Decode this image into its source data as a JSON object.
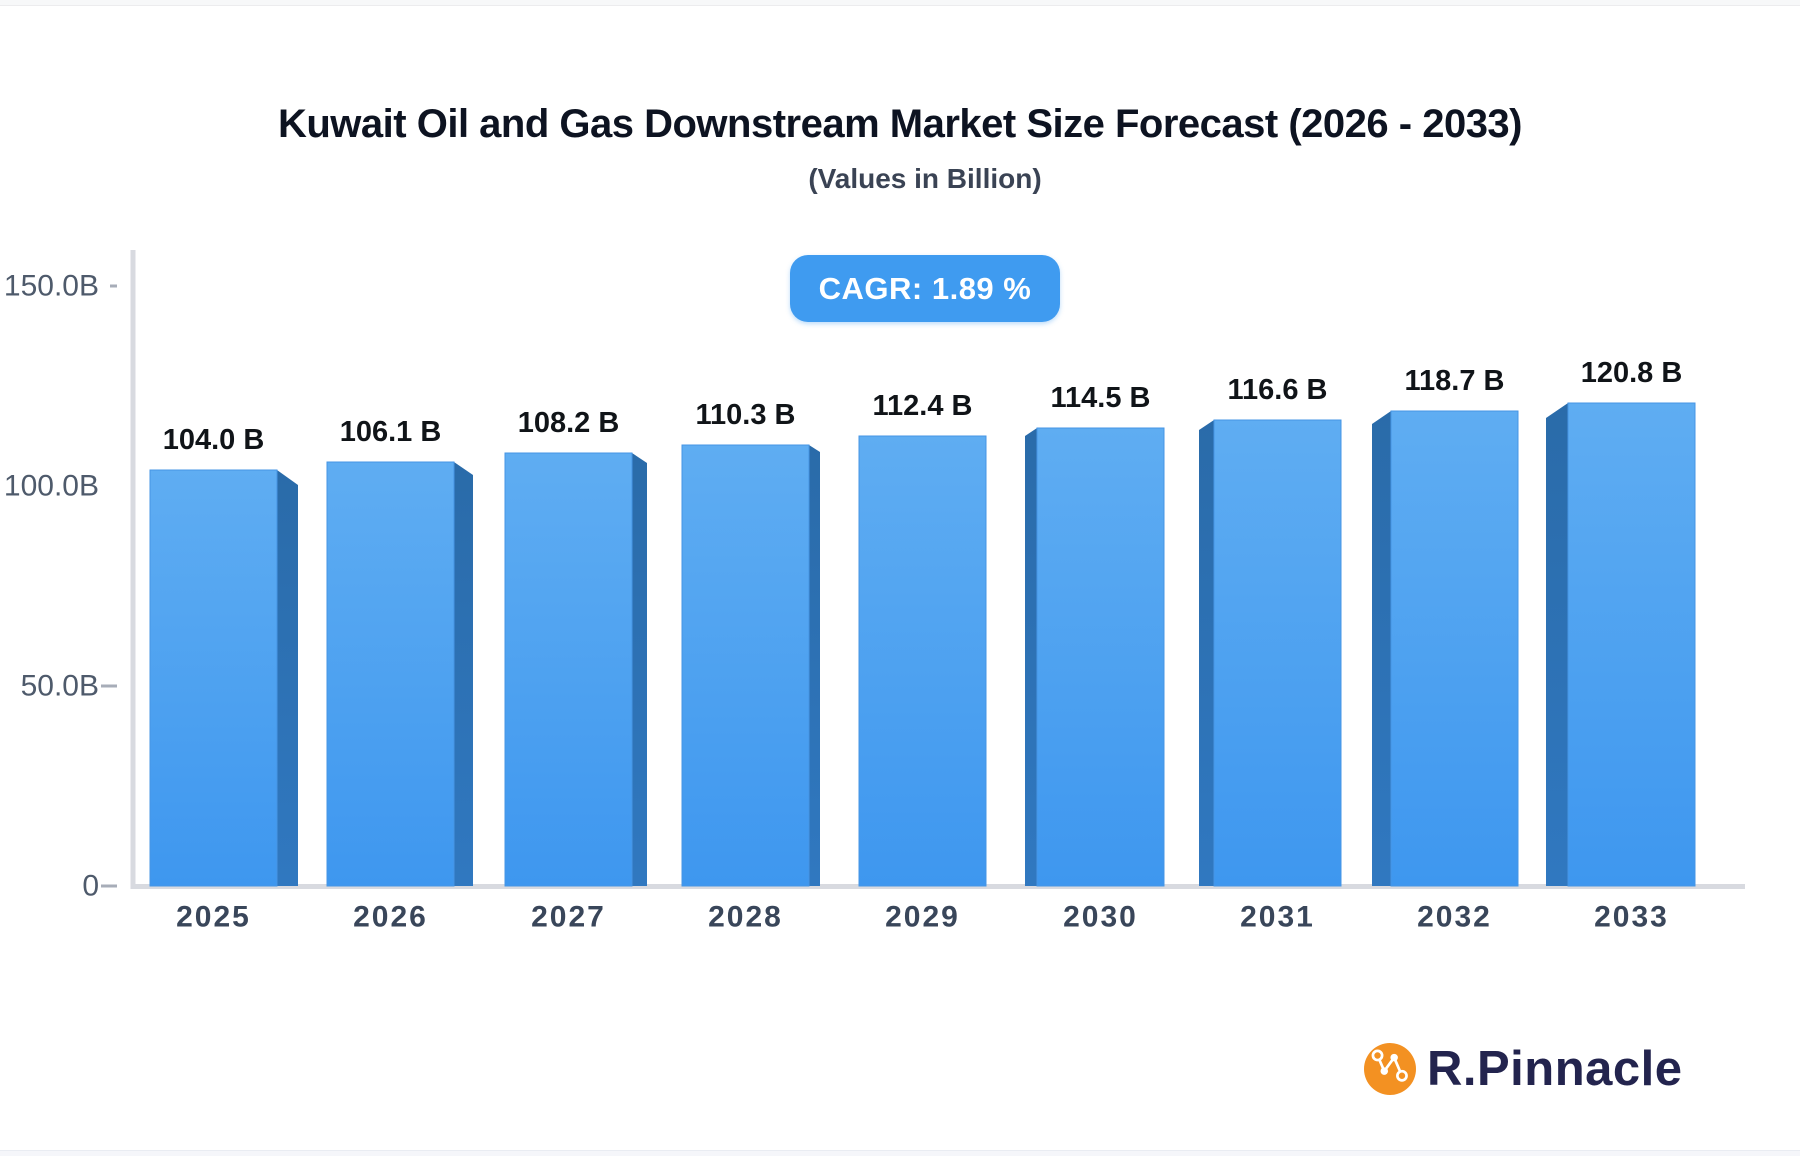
{
  "header": {
    "title": "Kuwait Oil and Gas Downstream Market Size Forecast (2026 - 2033)",
    "subtitle": "(Values in Billion)",
    "cagr_label": "CAGR: 1.89 %"
  },
  "chart_data": {
    "type": "bar",
    "title": "Kuwait Oil and Gas Downstream Market Size Forecast (2026 - 2033)",
    "subtitle": "(Values in Billion)",
    "annotation": "CAGR: 1.89 %",
    "categories": [
      "2025",
      "2026",
      "2027",
      "2028",
      "2029",
      "2030",
      "2031",
      "2032",
      "2033"
    ],
    "values": [
      104.0,
      106.1,
      108.2,
      110.3,
      112.4,
      114.5,
      116.6,
      118.7,
      120.8
    ],
    "value_labels": [
      "104.0 B",
      "106.1 B",
      "108.2 B",
      "110.3 B",
      "112.4 B",
      "114.5 B",
      "116.6 B",
      "118.7 B",
      "120.8 B"
    ],
    "xlabel": "",
    "ylabel": "",
    "y_unit": "Billion",
    "ylim": [
      0,
      150
    ],
    "y_ticks": [
      0,
      50,
      100,
      150
    ],
    "y_tick_labels": [
      "0",
      "50.0B",
      "100.0B",
      "150.0B"
    ],
    "grid": false,
    "legend": "none",
    "style": "3d-extruded-bars",
    "colors": {
      "bar_face_top": "#5fadf2",
      "bar_face_bottom": "#3e97ef",
      "bar_side_top": "#2a6ba9",
      "bar_side_bottom": "#3078c0",
      "bar_edge": "#4695e4",
      "axis_line": "#d8dae0",
      "tick_mark": "#a7adb8",
      "y_label_color": "#4e5a6b",
      "x_label_color": "#39465a",
      "value_label_color": "#101418",
      "badge_background": "#3f9bf0",
      "badge_text": "#ffffff"
    }
  },
  "branding": {
    "logo_text": "R.Pinnacle",
    "logo_icon": "network-zigzag-icon",
    "logo_icon_color": "#f39122",
    "logo_text_color": "#23244e"
  }
}
